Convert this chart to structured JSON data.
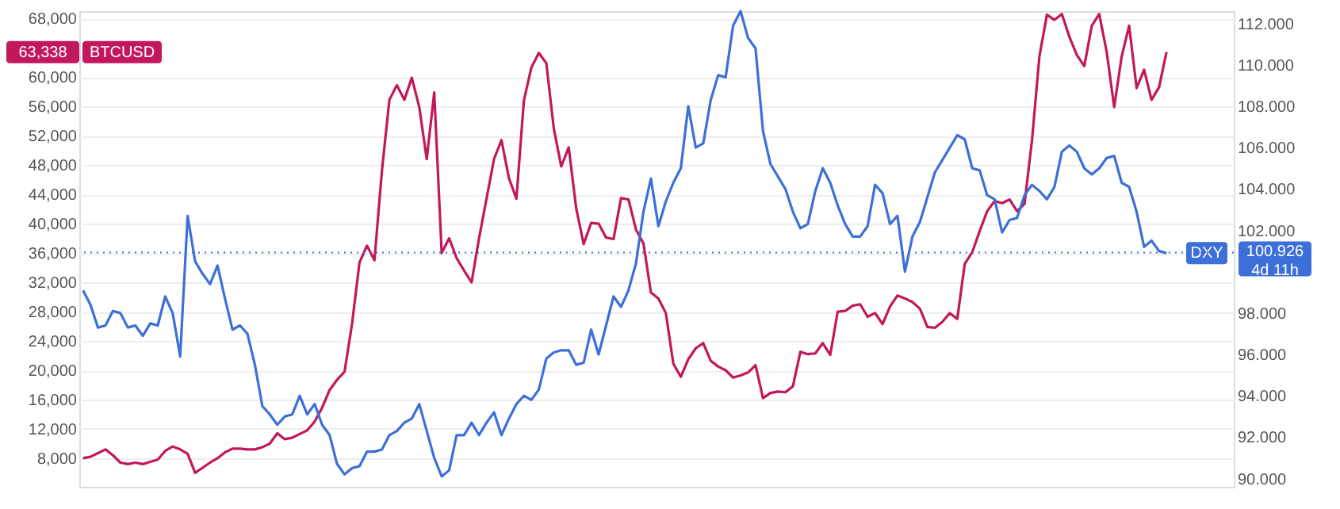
{
  "chart_data": {
    "type": "line",
    "categories": [
      null,
      null,
      null,
      null,
      null,
      null,
      null,
      null,
      null,
      null,
      null,
      null,
      null,
      null,
      null,
      null,
      null,
      null,
      null,
      null,
      null,
      null,
      null,
      null,
      null,
      null,
      null,
      null,
      null,
      null,
      null,
      null,
      null,
      null,
      null,
      null,
      null,
      null,
      null,
      null,
      null,
      null,
      null,
      null,
      null,
      null,
      null,
      null,
      null,
      null,
      null,
      null,
      null,
      null,
      null,
      null,
      null,
      null,
      null,
      null,
      null,
      null,
      null,
      null,
      null,
      null,
      null,
      null,
      null,
      null,
      null,
      null,
      null,
      null,
      null,
      null,
      null,
      null,
      null,
      null,
      null,
      null,
      null,
      null,
      null,
      null,
      null,
      null,
      null,
      null,
      null,
      null,
      null,
      null,
      null,
      null,
      null,
      null,
      null,
      null,
      null,
      null,
      null,
      null,
      null,
      null,
      null,
      null,
      null,
      null,
      null,
      null,
      null,
      null,
      null,
      null,
      null,
      null,
      null,
      null,
      null,
      null,
      null,
      null,
      null,
      null,
      null,
      null,
      null,
      null,
      null,
      null,
      null,
      null,
      null,
      null,
      null,
      null,
      null,
      null,
      null,
      null,
      null,
      null,
      null,
      null
    ],
    "tick_labels": "y",
    "grid": "y",
    "ylim": [
      4100,
      69000
    ],
    "yticks": [
      {
        "value": 8000,
        "label": "8,000"
      },
      {
        "value": 12000,
        "label": "12,000"
      },
      {
        "value": 16000,
        "label": "16,000"
      },
      {
        "value": 20000,
        "label": "20,000"
      },
      {
        "value": 24000,
        "label": "24,000"
      },
      {
        "value": 28000,
        "label": "28,000"
      },
      {
        "value": 32000,
        "label": "32,000"
      },
      {
        "value": 36000,
        "label": "36,000"
      },
      {
        "value": 40000,
        "label": "40,000"
      },
      {
        "value": 44000,
        "label": "44,000"
      },
      {
        "value": 48000,
        "label": "48,000"
      },
      {
        "value": 52000,
        "label": "52,000"
      },
      {
        "value": 56000,
        "label": "56,000"
      },
      {
        "value": 60000,
        "label": "60,000"
      },
      {
        "value": 68000,
        "label": "68,000"
      }
    ],
    "y2lim": [
      89.6,
      112.6
    ],
    "y2ticks": [
      {
        "value": 90,
        "label": "90.000"
      },
      {
        "value": 92,
        "label": "92.000"
      },
      {
        "value": 94,
        "label": "94.000"
      },
      {
        "value": 96,
        "label": "96.000"
      },
      {
        "value": 98,
        "label": "98.000"
      },
      {
        "value": 102,
        "label": "102.000"
      },
      {
        "value": 104,
        "label": "104.000"
      },
      {
        "value": 106,
        "label": "106.000"
      },
      {
        "value": 108,
        "label": "108.000"
      },
      {
        "value": 110,
        "label": "110.000"
      },
      {
        "value": 112,
        "label": "112.000"
      }
    ],
    "line_style": "solid",
    "series": [
      {
        "name": "BTCUSD",
        "color": "#c2185b",
        "values": [
          8000,
          8200,
          8700,
          9200,
          8400,
          7400,
          7200,
          7400,
          7200,
          7500,
          7800,
          9000,
          9600,
          9200,
          8600,
          6000,
          6700,
          7400,
          8000,
          8800,
          9300,
          9300,
          9200,
          9200,
          9500,
          10000,
          11400,
          10600,
          10800,
          11300,
          11800,
          13000,
          14900,
          17300,
          18700,
          19800,
          26300,
          34700,
          37000,
          35000,
          47200,
          56900,
          58900,
          56900,
          59900,
          55900,
          48800,
          57900,
          36000,
          38000,
          35300,
          33600,
          32000,
          38000,
          43400,
          48800,
          51400,
          46200,
          43400,
          56800,
          61300,
          63300,
          61900,
          53000,
          47800,
          50400,
          42100,
          37200,
          40100,
          40000,
          38100,
          37900,
          43500,
          43300,
          39200,
          37300,
          30600,
          29800,
          27800,
          20900,
          19100,
          21500,
          23000,
          23700,
          21300,
          20500,
          20000,
          19000,
          19300,
          19700,
          20700,
          16200,
          16900,
          17100,
          17000,
          17800,
          22500,
          22200,
          22300,
          23700,
          22100,
          28000,
          28100,
          28800,
          29000,
          27300,
          27800,
          26300,
          28700,
          30200,
          29800,
          29300,
          28400,
          25900,
          25800,
          26600,
          27800,
          27000,
          34500,
          36100,
          39000,
          41700,
          43100,
          42800,
          43300,
          41700,
          42700,
          51400,
          62900,
          68500,
          67800,
          68600,
          65500,
          63000,
          61500,
          67000,
          68600,
          63400,
          55900,
          62800,
          67000,
          58500,
          61000,
          56900,
          58600,
          63400
        ]
      },
      {
        "name": "DXY",
        "color": "#3d6fd9",
        "axis": "y2",
        "values": [
          99.1,
          98.4,
          97.3,
          97.4,
          98.1,
          98.0,
          97.3,
          97.4,
          96.9,
          97.5,
          97.4,
          98.8,
          98.0,
          95.9,
          102.7,
          100.5,
          99.9,
          99.4,
          100.3,
          98.7,
          97.2,
          97.4,
          97.0,
          95.5,
          93.5,
          93.1,
          92.6,
          93.0,
          93.1,
          94.0,
          93.1,
          93.6,
          92.6,
          92.1,
          90.7,
          90.2,
          90.5,
          90.6,
          91.3,
          91.3,
          91.4,
          92.1,
          92.3,
          92.7,
          92.9,
          93.6,
          92.3,
          91.0,
          90.1,
          90.4,
          92.1,
          92.1,
          92.7,
          92.1,
          92.7,
          93.2,
          92.1,
          92.9,
          93.6,
          94.0,
          93.8,
          94.3,
          95.8,
          96.1,
          96.2,
          96.2,
          95.5,
          95.6,
          97.2,
          96.0,
          97.4,
          98.8,
          98.3,
          99.1,
          100.4,
          102.9,
          104.5,
          102.2,
          103.4,
          104.3,
          105.0,
          108.0,
          106.0,
          106.2,
          108.3,
          109.5,
          109.4,
          111.9,
          112.6,
          111.3,
          110.8,
          106.8,
          105.2,
          104.6,
          104.0,
          102.9,
          102.1,
          102.3,
          103.9,
          105.0,
          104.3,
          103.2,
          102.3,
          101.7,
          101.7,
          102.2,
          104.2,
          103.8,
          102.3,
          102.7,
          100.0,
          101.7,
          102.4,
          103.6,
          104.8,
          105.4,
          106.0,
          106.6,
          106.4,
          105.0,
          104.9,
          103.7,
          103.5,
          101.9,
          102.5,
          102.6,
          103.7,
          104.2,
          103.9,
          103.5,
          104.1,
          105.8,
          106.1,
          105.8,
          105.0,
          104.7,
          105.0,
          105.5,
          105.6,
          104.3,
          104.1,
          102.9,
          101.2,
          101.5,
          101.0,
          100.9
        ]
      }
    ],
    "ref_lines": [
      {
        "axis": "y2",
        "value": 100.926,
        "label": "100.926\n4d 11h",
        "color": "#3d6fd9",
        "line_style": "dotted"
      }
    ],
    "annotations": [
      "63,338"
    ]
  }
}
